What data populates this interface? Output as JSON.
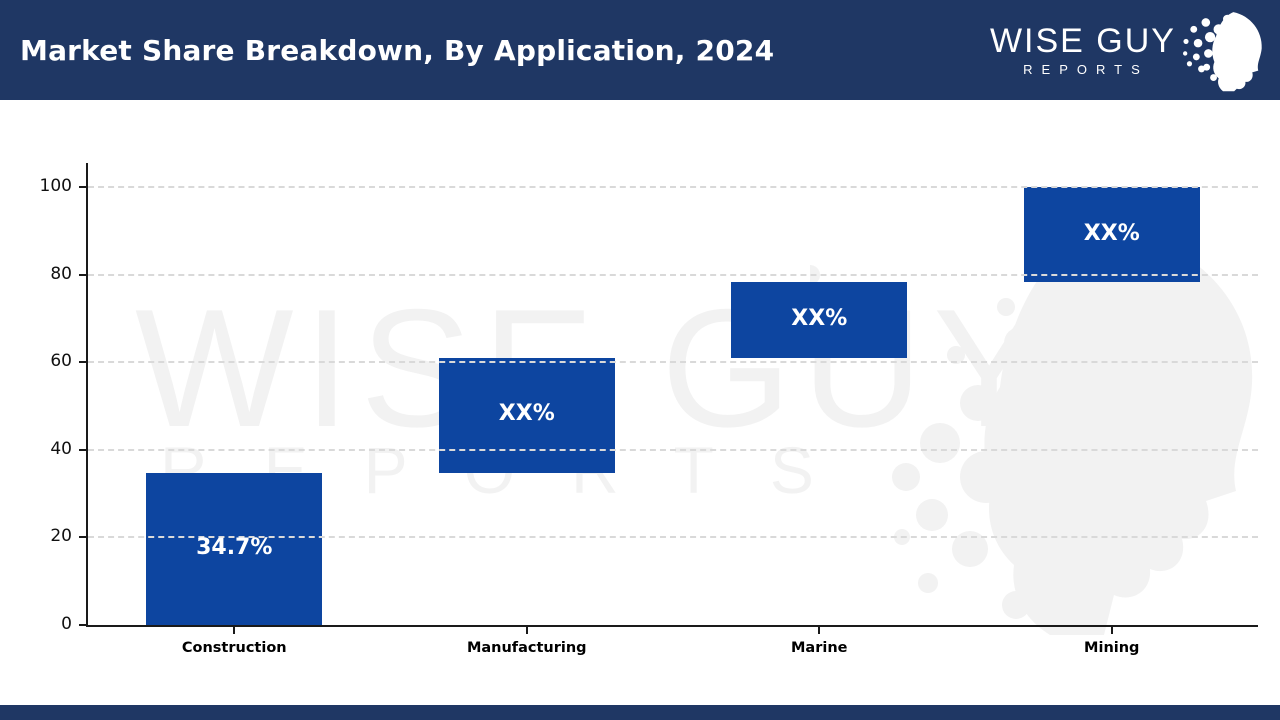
{
  "header": {
    "title": "Market Share Breakdown, By Application, 2024",
    "logo": {
      "line1": "WISE GUY",
      "line2": "REPORTS"
    }
  },
  "watermark": {
    "line1": "WISE GUY",
    "line2": "REPORTS"
  },
  "colors": {
    "header_bg": "#1F3764",
    "footer_bg": "#1F3764",
    "bar": "#0D45A0",
    "grid": "#D9D9D9",
    "axis": "#1A1A1A",
    "bar_label_text": "#FFFFFF",
    "watermark": "#F2F2F2"
  },
  "chart_data": {
    "type": "bar",
    "subtype": "waterfall",
    "title": "Market Share Breakdown, By Application, 2024",
    "categories": [
      "Construction",
      "Manufacturing",
      "Marine",
      "Mining"
    ],
    "segments": [
      {
        "category": "Construction",
        "start": 0,
        "end": 34.7,
        "value": 34.7,
        "label": "34.7%"
      },
      {
        "category": "Manufacturing",
        "start": 34.7,
        "end": 61.0,
        "value": 26.3,
        "label": "XX%"
      },
      {
        "category": "Marine",
        "start": 61.0,
        "end": 78.2,
        "value": 17.2,
        "label": "XX%"
      },
      {
        "category": "Mining",
        "start": 78.2,
        "end": 100.0,
        "value": 21.8,
        "label": "XX%"
      }
    ],
    "yticks": [
      0,
      20,
      40,
      60,
      80,
      100
    ],
    "ylim": [
      0,
      105
    ],
    "xlabel": "",
    "ylabel": "",
    "grid": "horizontal-dashed",
    "legend": "none"
  }
}
